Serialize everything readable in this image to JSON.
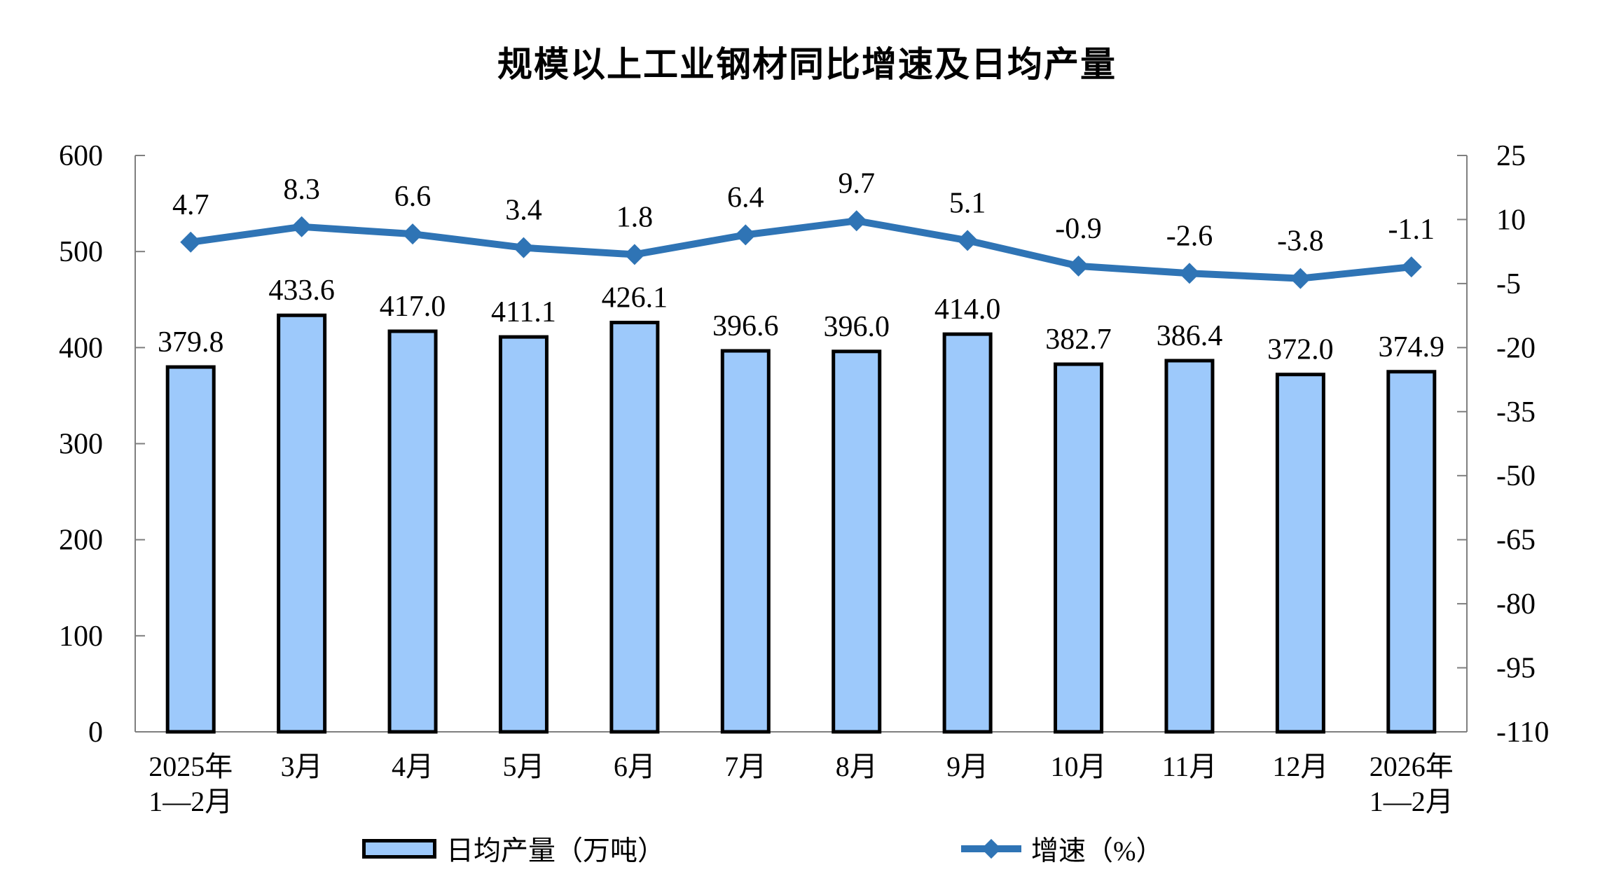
{
  "chart_data": {
    "type": "bar+line combo",
    "title": "规模以上工业钢材同比增速及日均产量",
    "categories": [
      "2025年\n1—2月",
      "3月",
      "4月",
      "5月",
      "6月",
      "7月",
      "8月",
      "9月",
      "10月",
      "11月",
      "12月",
      "2026年\n1—2月"
    ],
    "series": [
      {
        "name": "日均产量（万吨）",
        "type": "bar",
        "axis": "left",
        "values": [
          379.8,
          433.6,
          417.0,
          411.1,
          426.1,
          396.6,
          396.0,
          414.0,
          382.7,
          386.4,
          372.0,
          374.9
        ]
      },
      {
        "name": "增速（%）",
        "type": "line",
        "axis": "right",
        "marker": "diamond",
        "values": [
          4.7,
          8.3,
          6.6,
          3.4,
          1.8,
          6.4,
          9.7,
          5.1,
          -0.9,
          -2.6,
          -3.8,
          -1.1
        ]
      }
    ],
    "left_axis": {
      "min": 0,
      "max": 600,
      "ticks": [
        600,
        500,
        400,
        300,
        200,
        100,
        0
      ]
    },
    "right_axis": {
      "min": -110,
      "max": 25,
      "ticks": [
        25,
        10,
        -5,
        -20,
        -35,
        -50,
        -65,
        -80,
        -95,
        -110
      ]
    },
    "grid": false,
    "legend_position": "bottom",
    "value_labels_decimals": 1
  },
  "legend": {
    "bar_label": "日均产量（万吨）",
    "line_label": "增速（%）"
  },
  "colors": {
    "bar_fill": "#9DC9FB",
    "bar_stroke": "#000000",
    "line": "#2F74B5",
    "axis": "#7F7F7F",
    "text": "#000000",
    "background": "#FFFFFF"
  }
}
